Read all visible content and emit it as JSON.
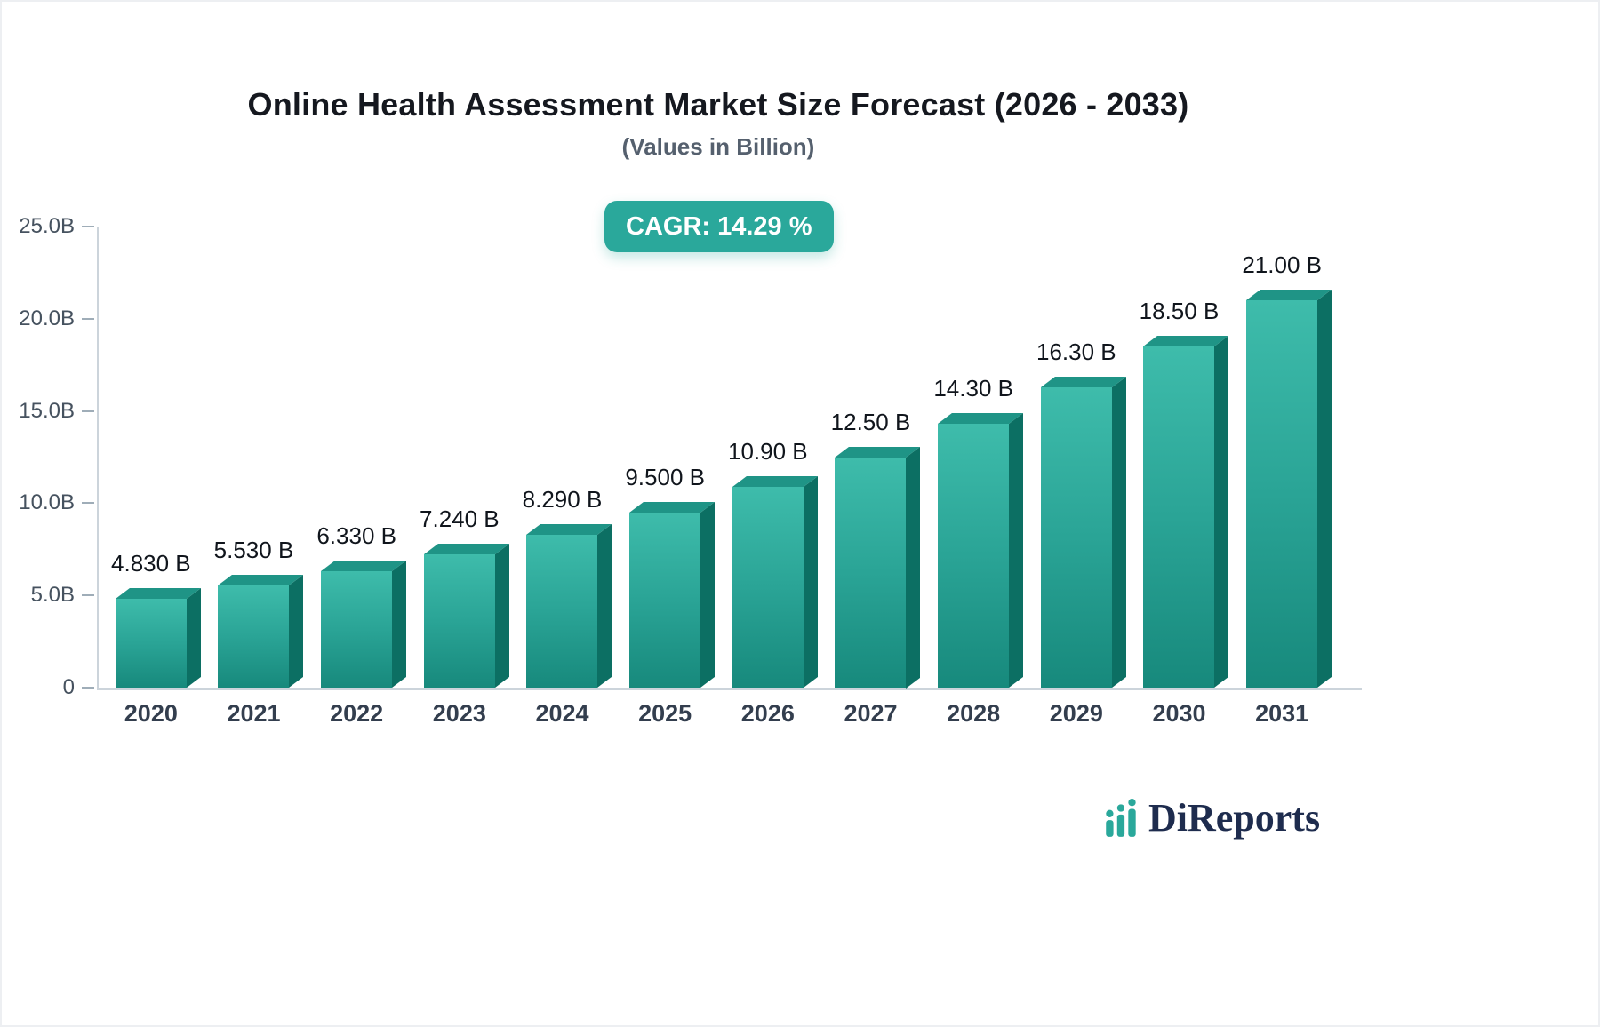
{
  "header": {
    "title": "Online Health Assessment Market Size Forecast (2026 - 2033)",
    "subtitle": "(Values in Billion)"
  },
  "badge": {
    "label": "CAGR: 14.29 %"
  },
  "chart_data": {
    "type": "bar",
    "title": "Online Health Assessment Market Size Forecast (2026 - 2033)",
    "subtitle": "(Values in Billion)",
    "cagr": "14.29 %",
    "unit": "Billion",
    "categories": [
      "2020",
      "2021",
      "2022",
      "2023",
      "2024",
      "2025",
      "2026",
      "2027",
      "2028",
      "2029",
      "2030",
      "2031"
    ],
    "values": [
      4.83,
      5.53,
      6.33,
      7.24,
      8.29,
      9.5,
      10.9,
      12.5,
      14.3,
      16.3,
      18.5,
      21.0
    ],
    "value_labels": [
      "4.830 B",
      "5.530 B",
      "6.330 B",
      "7.240 B",
      "8.290 B",
      "9.500 B",
      "10.90 B",
      "12.50 B",
      "14.30 B",
      "16.30 B",
      "18.50 B",
      "21.00 B"
    ],
    "xlabel": "",
    "ylabel": "",
    "ylim": [
      0,
      25
    ],
    "yticks": [
      0,
      5,
      10,
      15,
      20,
      25
    ],
    "ytick_labels": [
      "0",
      "5.0B",
      "10.0B",
      "15.0B",
      "20.0B",
      "25.0B"
    ],
    "grid": false,
    "legend": "none",
    "bar_colors": {
      "front_top": "#3ebcab",
      "front_mid": "#2aa496",
      "front_bottom": "#17897c",
      "side": "#0c6f63",
      "top": "#1f9486"
    },
    "axis_color": "#ccd4db"
  },
  "logo": {
    "text": "DiReports",
    "icon_color": "#2aa89b"
  },
  "colors": {
    "accent": "#2aa89b",
    "title": "#15181f",
    "subtitle": "#55606e",
    "background": "#ffffff"
  }
}
